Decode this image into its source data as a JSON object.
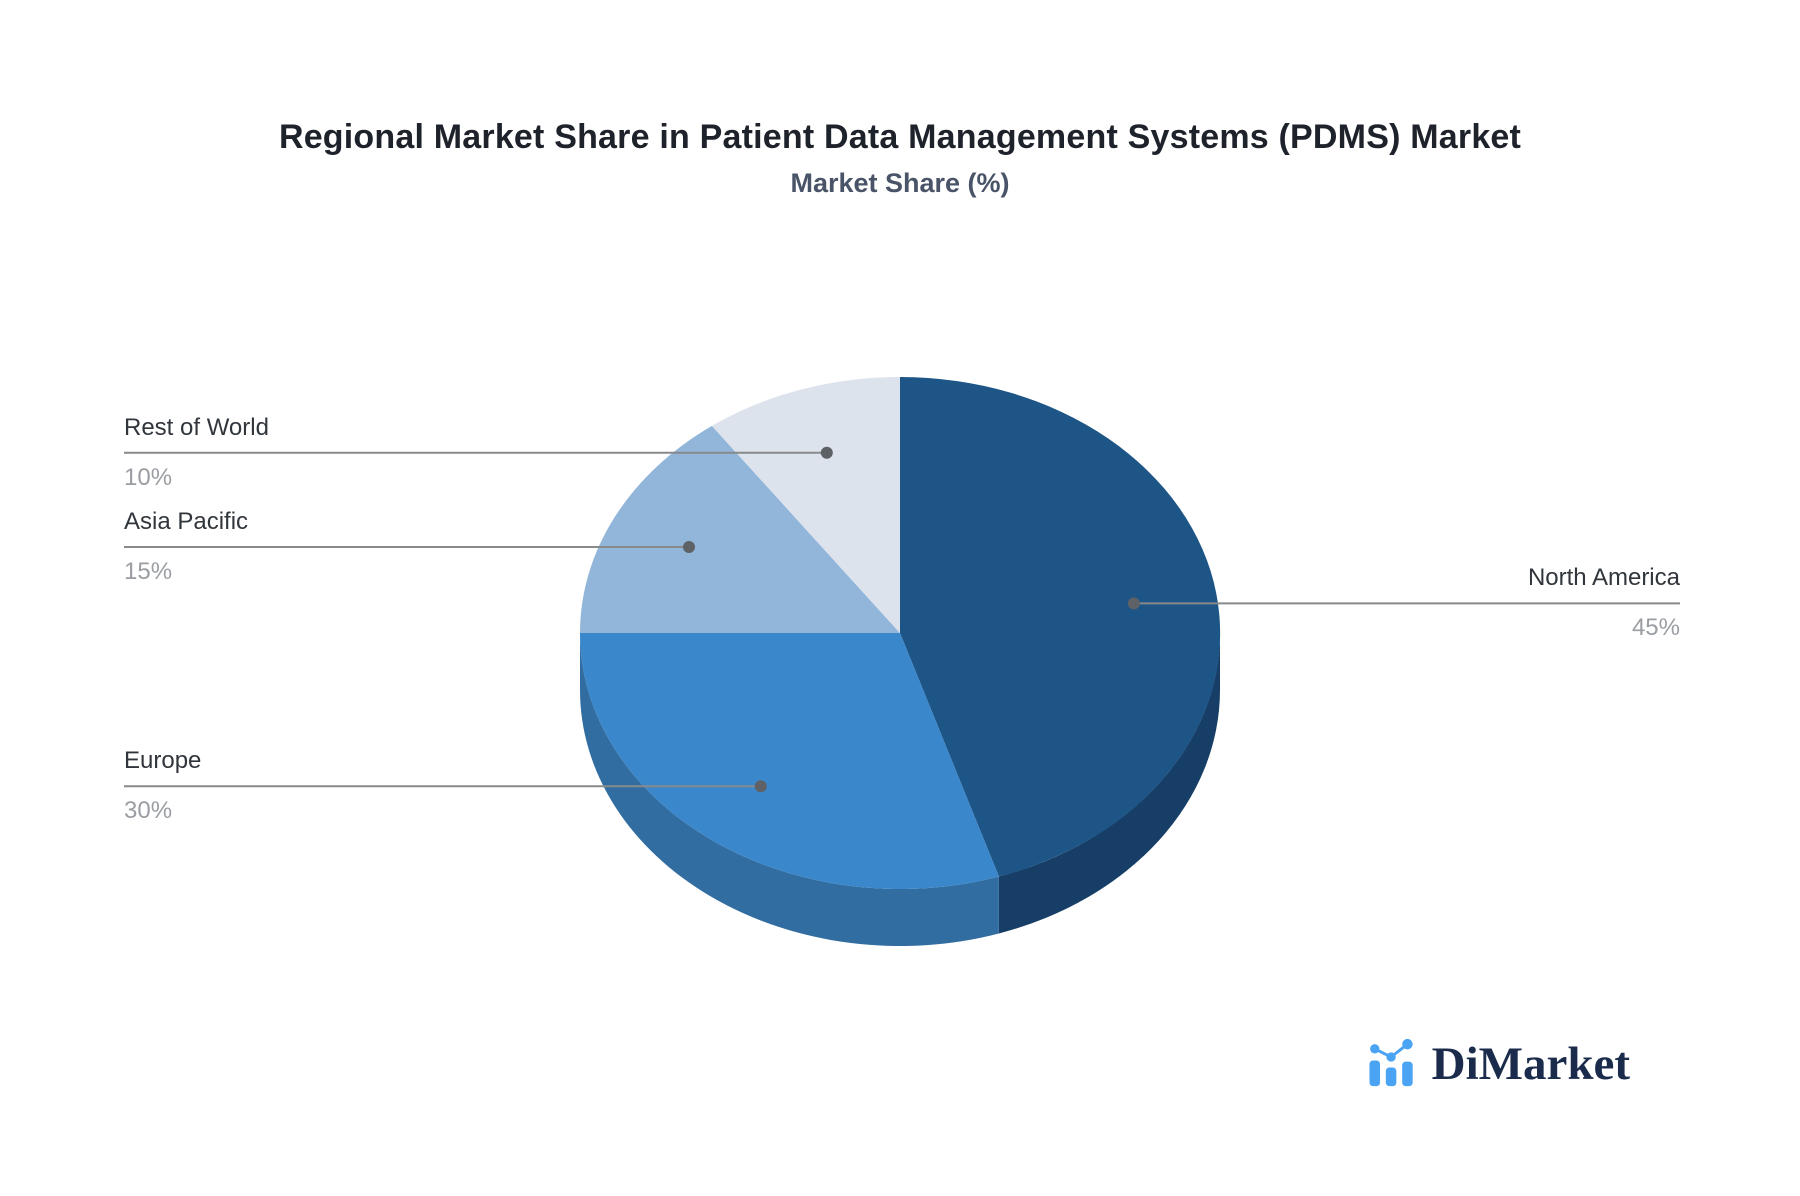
{
  "chart_data": {
    "type": "pie",
    "title": "Regional Market Share in Patient Data Management Systems (PDMS) Market",
    "subtitle": "Market Share (%)",
    "unit": "%",
    "style": "3d-pie",
    "start_angle_deg": 0,
    "direction": "clockwise",
    "legend_position": "callout-labels",
    "grid": false,
    "slices": [
      {
        "label": "North America",
        "value": 45,
        "display": "45%",
        "color": "#1d5587",
        "side_color": "#163e66"
      },
      {
        "label": "Europe",
        "value": 30,
        "display": "30%",
        "color": "#3b87cb",
        "side_color": "#316da1"
      },
      {
        "label": "Asia Pacific",
        "value": 15,
        "display": "15%",
        "color": "#92b6da",
        "side_color": "#7ba3c9"
      },
      {
        "label": "Rest of World",
        "value": 10,
        "display": "10%",
        "color": "#dde3ed",
        "side_color": "#c3cdda"
      }
    ]
  },
  "branding": {
    "logo_text": "DiMarket",
    "logo_icon": "bar-line-chart-icon",
    "logo_text_color": "#1b2b4c",
    "logo_accent_color": "#4aa3f3"
  },
  "colors": {
    "background": "#ffffff",
    "title": "#1e222a",
    "subtitle": "#4a5468",
    "label_text": "#31363c",
    "label_value": "#9a9da2",
    "leader_line": "#88898b",
    "leader_dot": "#5e6165"
  }
}
